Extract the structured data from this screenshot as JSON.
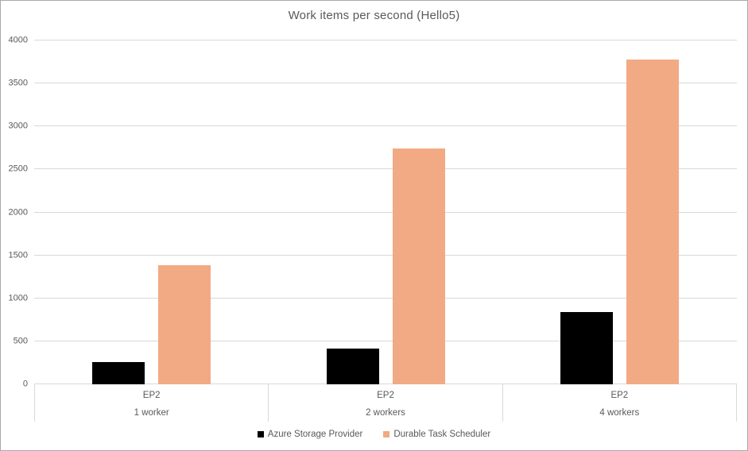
{
  "chart_data": {
    "type": "bar",
    "title": "Work items per second (Hello5)",
    "xlabel": "",
    "ylabel": "",
    "ylim": [
      0,
      4000
    ],
    "yticks": [
      "0",
      "500",
      "1000",
      "1500",
      "2000",
      "2500",
      "3000",
      "3500",
      "4000"
    ],
    "ytick_values": [
      0,
      500,
      1000,
      1500,
      2000,
      2500,
      3000,
      3500,
      4000
    ],
    "grid": "horizontal",
    "legend_position": "bottom",
    "categories": [
      {
        "primary": "EP2",
        "secondary": "1 worker"
      },
      {
        "primary": "EP2",
        "secondary": "2 workers"
      },
      {
        "primary": "EP2",
        "secondary": "4 workers"
      }
    ],
    "series": [
      {
        "name": "Azure Storage Provider",
        "color": "#000000",
        "values": [
          260,
          420,
          840
        ]
      },
      {
        "name": "Durable Task Scheduler",
        "color": "#F2AA84",
        "values": [
          1390,
          2740,
          3780
        ]
      }
    ],
    "colors": {
      "background": "#FFFFFF",
      "gridline": "#D9D9D9",
      "axis_text": "#595959",
      "title_text": "#595959",
      "outer_border": "#A9A9A9"
    }
  }
}
